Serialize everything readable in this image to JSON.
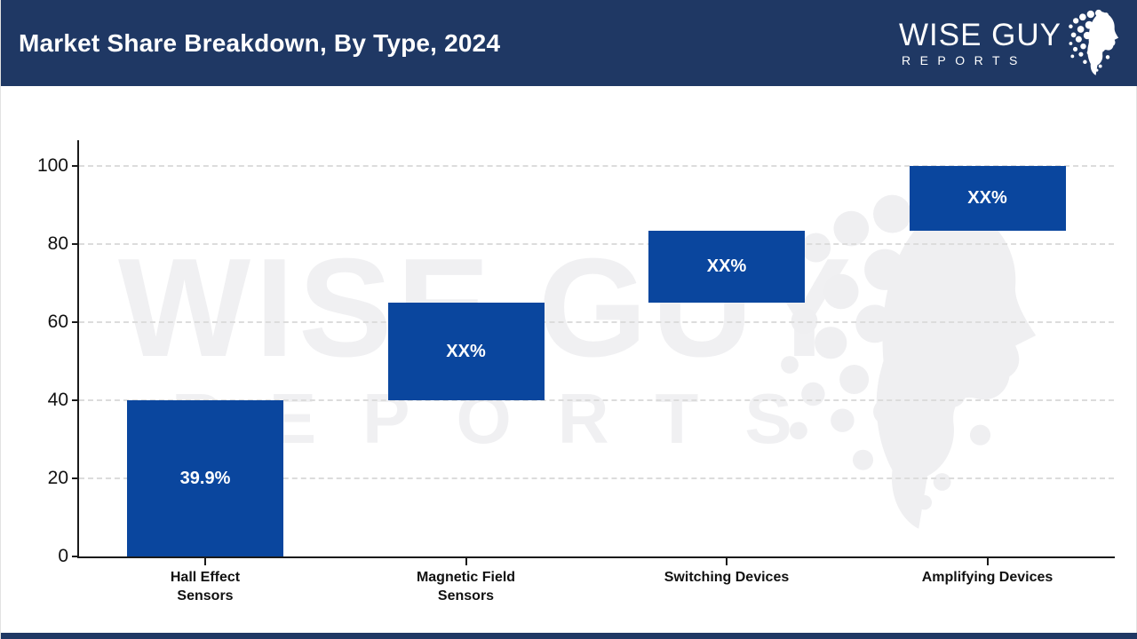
{
  "header": {
    "title": "Market Share Breakdown, By Type, 2024",
    "logo": {
      "name": "WISE GUY",
      "subname": "REPORTS"
    }
  },
  "watermark": {
    "big_text": "WISE GUY",
    "sub_text": "REPORTS"
  },
  "footer": {},
  "colors": {
    "header_bg": "#1F3864",
    "footer_bg": "#1F3864",
    "bar": "#0A469E",
    "gridline": "#DCDCDC",
    "watermark": "#F0F0F2",
    "bar_label_text": "#FFFFFF",
    "axis_text": "#111111"
  },
  "chart_data": {
    "type": "bar",
    "subtype": "waterfall",
    "title": "Market Share Breakdown, By Type, 2024",
    "categories": [
      "Hall Effect Sensors",
      "Magnetic Field Sensors",
      "Switching Devices",
      "Amplifying Devices"
    ],
    "values": [
      39.9,
      25.1,
      18.5,
      16.5
    ],
    "bar_labels": [
      "39.9%",
      "XX%",
      "XX%",
      "XX%"
    ],
    "bars": [
      {
        "category_lines": [
          "Hall Effect",
          "Sensors"
        ],
        "start": 0,
        "end": 39.9,
        "label": "39.9%"
      },
      {
        "category_lines": [
          "Magnetic Field",
          "Sensors"
        ],
        "start": 39.9,
        "end": 65,
        "label": "XX%"
      },
      {
        "category_lines": [
          "Switching Devices"
        ],
        "start": 65,
        "end": 83.5,
        "label": "XX%"
      },
      {
        "category_lines": [
          "Amplifying Devices"
        ],
        "start": 83.5,
        "end": 100,
        "label": "XX%"
      }
    ],
    "xlabel": "",
    "ylabel": "",
    "ylim": [
      0,
      100
    ],
    "yticks": [
      0,
      20,
      40,
      60,
      80,
      100
    ],
    "grid": "horizontal-dashed",
    "legend": "none"
  }
}
